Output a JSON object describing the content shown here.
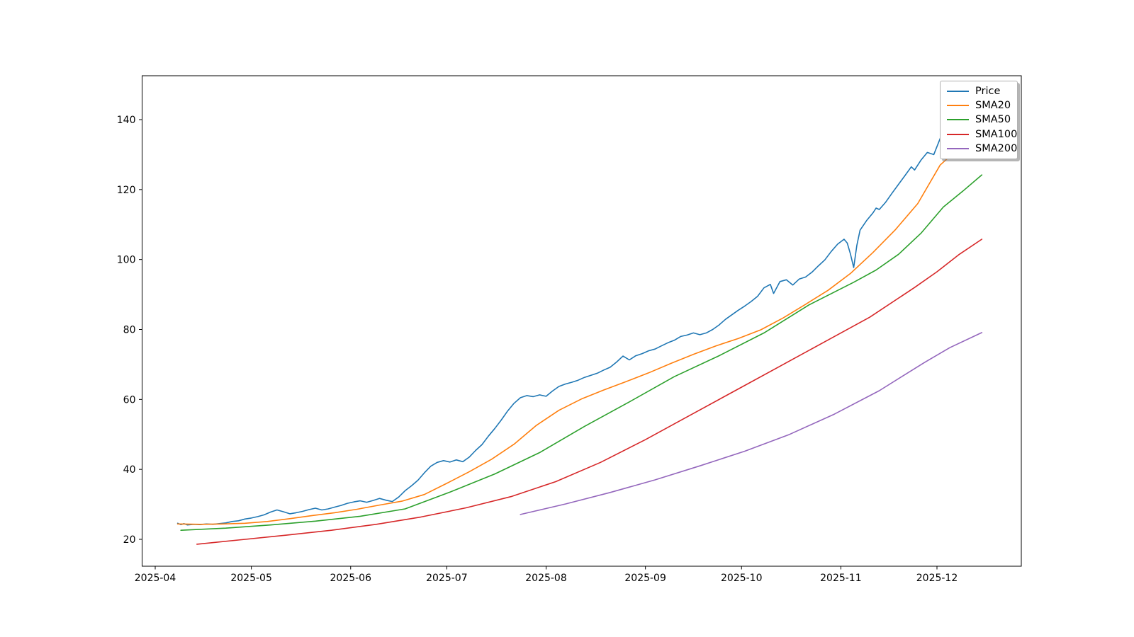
{
  "figure": {
    "background": "#ffffff",
    "description": "Line chart of daily Price with simple moving averages SMA20, SMA50, SMA100, SMA200 from 2025-04 to 2025-12"
  },
  "chart_data": {
    "type": "line",
    "title": "",
    "xlabel": "",
    "ylabel": "",
    "grid": false,
    "legend_position": "upper right",
    "legend_entries": [
      "Price",
      "SMA20",
      "SMA50",
      "SMA100",
      "SMA200"
    ],
    "x_axis": {
      "tick_labels": [
        "2025-04",
        "2025-05",
        "2025-06",
        "2025-07",
        "2025-08",
        "2025-09",
        "2025-10",
        "2025-11",
        "2025-12"
      ],
      "tick_dates": [
        "2025-04-01",
        "2025-05-01",
        "2025-06-01",
        "2025-07-01",
        "2025-08-01",
        "2025-09-01",
        "2025-10-01",
        "2025-11-01",
        "2025-12-01"
      ],
      "range_dates": [
        "2025-03-28",
        "2025-12-27"
      ]
    },
    "y_axis": {
      "ticks": [
        20,
        40,
        60,
        80,
        100,
        120,
        140
      ],
      "range": [
        12.3,
        152.6
      ]
    },
    "series": [
      {
        "name": "Price",
        "color": "#1f77b4",
        "points": [
          [
            "2025-04-08",
            24.6
          ],
          [
            "2025-04-09",
            24.2
          ],
          [
            "2025-04-10",
            24.5
          ],
          [
            "2025-04-11",
            24.1
          ],
          [
            "2025-04-13",
            24.3
          ],
          [
            "2025-04-15",
            24.2
          ],
          [
            "2025-04-17",
            24.4
          ],
          [
            "2025-04-19",
            24.3
          ],
          [
            "2025-04-21",
            24.5
          ],
          [
            "2025-04-23",
            24.7
          ],
          [
            "2025-04-25",
            25.1
          ],
          [
            "2025-04-27",
            25.3
          ],
          [
            "2025-04-29",
            25.8
          ],
          [
            "2025-05-01",
            26.1
          ],
          [
            "2025-05-03",
            26.5
          ],
          [
            "2025-05-05",
            27.0
          ],
          [
            "2025-05-07",
            27.8
          ],
          [
            "2025-05-09",
            28.4
          ],
          [
            "2025-05-11",
            27.9
          ],
          [
            "2025-05-13",
            27.3
          ],
          [
            "2025-05-15",
            27.6
          ],
          [
            "2025-05-17",
            28.0
          ],
          [
            "2025-05-19",
            28.5
          ],
          [
            "2025-05-21",
            28.9
          ],
          [
            "2025-05-23",
            28.4
          ],
          [
            "2025-05-25",
            28.7
          ],
          [
            "2025-05-27",
            29.2
          ],
          [
            "2025-05-29",
            29.7
          ],
          [
            "2025-05-31",
            30.3
          ],
          [
            "2025-06-02",
            30.7
          ],
          [
            "2025-06-04",
            31.0
          ],
          [
            "2025-06-06",
            30.6
          ],
          [
            "2025-06-08",
            31.1
          ],
          [
            "2025-06-10",
            31.7
          ],
          [
            "2025-06-12",
            31.2
          ],
          [
            "2025-06-14",
            30.8
          ],
          [
            "2025-06-16",
            32.1
          ],
          [
            "2025-06-18",
            33.9
          ],
          [
            "2025-06-20",
            35.3
          ],
          [
            "2025-06-22",
            36.9
          ],
          [
            "2025-06-24",
            39.0
          ],
          [
            "2025-06-26",
            40.9
          ],
          [
            "2025-06-28",
            42.0
          ],
          [
            "2025-06-30",
            42.5
          ],
          [
            "2025-07-02",
            42.1
          ],
          [
            "2025-07-04",
            42.7
          ],
          [
            "2025-07-06",
            42.2
          ],
          [
            "2025-07-08",
            43.5
          ],
          [
            "2025-07-10",
            45.4
          ],
          [
            "2025-07-12",
            47.1
          ],
          [
            "2025-07-14",
            49.5
          ],
          [
            "2025-07-16",
            51.7
          ],
          [
            "2025-07-18",
            54.1
          ],
          [
            "2025-07-20",
            56.7
          ],
          [
            "2025-07-22",
            58.9
          ],
          [
            "2025-07-24",
            60.5
          ],
          [
            "2025-07-26",
            61.1
          ],
          [
            "2025-07-28",
            60.8
          ],
          [
            "2025-07-30",
            61.3
          ],
          [
            "2025-08-01",
            60.9
          ],
          [
            "2025-08-03",
            62.4
          ],
          [
            "2025-08-05",
            63.7
          ],
          [
            "2025-08-07",
            64.4
          ],
          [
            "2025-08-09",
            64.9
          ],
          [
            "2025-08-11",
            65.5
          ],
          [
            "2025-08-13",
            66.3
          ],
          [
            "2025-08-15",
            66.9
          ],
          [
            "2025-08-17",
            67.5
          ],
          [
            "2025-08-19",
            68.4
          ],
          [
            "2025-08-21",
            69.2
          ],
          [
            "2025-08-23",
            70.7
          ],
          [
            "2025-08-25",
            72.4
          ],
          [
            "2025-08-27",
            71.3
          ],
          [
            "2025-08-29",
            72.5
          ],
          [
            "2025-08-31",
            73.1
          ],
          [
            "2025-09-02",
            73.9
          ],
          [
            "2025-09-04",
            74.4
          ],
          [
            "2025-09-06",
            75.3
          ],
          [
            "2025-09-08",
            76.2
          ],
          [
            "2025-09-10",
            76.9
          ],
          [
            "2025-09-12",
            78.0
          ],
          [
            "2025-09-14",
            78.4
          ],
          [
            "2025-09-16",
            79.0
          ],
          [
            "2025-09-18",
            78.5
          ],
          [
            "2025-09-20",
            79.0
          ],
          [
            "2025-09-22",
            80.0
          ],
          [
            "2025-09-24",
            81.3
          ],
          [
            "2025-09-26",
            82.9
          ],
          [
            "2025-09-28",
            84.2
          ],
          [
            "2025-09-30",
            85.5
          ],
          [
            "2025-10-02",
            86.7
          ],
          [
            "2025-10-04",
            88.0
          ],
          [
            "2025-10-06",
            89.5
          ],
          [
            "2025-10-08",
            91.9
          ],
          [
            "2025-10-10",
            92.9
          ],
          [
            "2025-10-11",
            90.3
          ],
          [
            "2025-10-13",
            93.7
          ],
          [
            "2025-10-15",
            94.2
          ],
          [
            "2025-10-17",
            92.7
          ],
          [
            "2025-10-19",
            94.4
          ],
          [
            "2025-10-21",
            95.0
          ],
          [
            "2025-10-23",
            96.4
          ],
          [
            "2025-10-25",
            98.2
          ],
          [
            "2025-10-27",
            99.9
          ],
          [
            "2025-10-29",
            102.3
          ],
          [
            "2025-10-31",
            104.4
          ],
          [
            "2025-11-02",
            105.8
          ],
          [
            "2025-11-03",
            104.7
          ],
          [
            "2025-11-04",
            101.6
          ],
          [
            "2025-11-05",
            97.7
          ],
          [
            "2025-11-06",
            104.1
          ],
          [
            "2025-11-07",
            108.4
          ],
          [
            "2025-11-09",
            111.1
          ],
          [
            "2025-11-11",
            113.3
          ],
          [
            "2025-11-12",
            114.7
          ],
          [
            "2025-11-13",
            114.3
          ],
          [
            "2025-11-15",
            116.4
          ],
          [
            "2025-11-17",
            119.0
          ],
          [
            "2025-11-19",
            121.5
          ],
          [
            "2025-11-21",
            124.0
          ],
          [
            "2025-11-23",
            126.5
          ],
          [
            "2025-11-24",
            125.6
          ],
          [
            "2025-11-26",
            128.4
          ],
          [
            "2025-11-28",
            130.6
          ],
          [
            "2025-11-30",
            130.0
          ],
          [
            "2025-12-02",
            134.6
          ],
          [
            "2025-12-03",
            137.3
          ],
          [
            "2025-12-05",
            138.2
          ],
          [
            "2025-12-07",
            139.5
          ],
          [
            "2025-12-09",
            140.8
          ],
          [
            "2025-12-11",
            142.1
          ],
          [
            "2025-12-13",
            143.4
          ],
          [
            "2025-12-15",
            144.6
          ]
        ]
      },
      {
        "name": "SMA20",
        "color": "#ff7f0e",
        "points": [
          [
            "2025-04-08",
            24.4
          ],
          [
            "2025-04-15",
            24.3
          ],
          [
            "2025-04-22",
            24.4
          ],
          [
            "2025-04-29",
            24.6
          ],
          [
            "2025-05-06",
            25.1
          ],
          [
            "2025-05-13",
            25.9
          ],
          [
            "2025-05-20",
            26.8
          ],
          [
            "2025-05-27",
            27.6
          ],
          [
            "2025-06-03",
            28.6
          ],
          [
            "2025-06-10",
            29.8
          ],
          [
            "2025-06-17",
            30.9
          ],
          [
            "2025-06-24",
            32.8
          ],
          [
            "2025-07-01",
            36.0
          ],
          [
            "2025-07-08",
            39.3
          ],
          [
            "2025-07-15",
            42.9
          ],
          [
            "2025-07-22",
            47.2
          ],
          [
            "2025-07-29",
            52.6
          ],
          [
            "2025-08-05",
            56.9
          ],
          [
            "2025-08-12",
            60.1
          ],
          [
            "2025-08-19",
            62.7
          ],
          [
            "2025-08-26",
            65.1
          ],
          [
            "2025-09-02",
            67.6
          ],
          [
            "2025-09-09",
            70.3
          ],
          [
            "2025-09-16",
            72.9
          ],
          [
            "2025-09-23",
            75.3
          ],
          [
            "2025-09-30",
            77.4
          ],
          [
            "2025-10-07",
            79.9
          ],
          [
            "2025-10-14",
            83.3
          ],
          [
            "2025-10-21",
            87.2
          ],
          [
            "2025-10-28",
            91.2
          ],
          [
            "2025-11-04",
            96.0
          ],
          [
            "2025-11-11",
            102.0
          ],
          [
            "2025-11-18",
            108.5
          ],
          [
            "2025-11-25",
            116.0
          ],
          [
            "2025-12-02",
            127.0
          ],
          [
            "2025-12-09",
            132.8
          ],
          [
            "2025-12-15",
            137.5
          ]
        ]
      },
      {
        "name": "SMA50",
        "color": "#2ca02c",
        "points": [
          [
            "2025-04-09",
            22.6
          ],
          [
            "2025-04-23",
            23.2
          ],
          [
            "2025-05-07",
            24.1
          ],
          [
            "2025-05-21",
            25.2
          ],
          [
            "2025-06-04",
            26.6
          ],
          [
            "2025-06-18",
            28.7
          ],
          [
            "2025-07-02",
            33.5
          ],
          [
            "2025-07-16",
            38.7
          ],
          [
            "2025-07-30",
            44.8
          ],
          [
            "2025-08-13",
            52.3
          ],
          [
            "2025-08-27",
            59.3
          ],
          [
            "2025-09-10",
            66.5
          ],
          [
            "2025-09-24",
            72.5
          ],
          [
            "2025-10-08",
            79.0
          ],
          [
            "2025-10-22",
            87.0
          ],
          [
            "2025-11-05",
            93.5
          ],
          [
            "2025-11-12",
            97.0
          ],
          [
            "2025-11-19",
            101.5
          ],
          [
            "2025-11-26",
            107.5
          ],
          [
            "2025-12-03",
            115.0
          ],
          [
            "2025-12-09",
            119.5
          ],
          [
            "2025-12-15",
            124.2
          ]
        ]
      },
      {
        "name": "SMA100",
        "color": "#d62728",
        "points": [
          [
            "2025-04-14",
            18.6
          ],
          [
            "2025-04-28",
            19.9
          ],
          [
            "2025-05-12",
            21.2
          ],
          [
            "2025-05-26",
            22.6
          ],
          [
            "2025-06-09",
            24.3
          ],
          [
            "2025-06-23",
            26.4
          ],
          [
            "2025-07-07",
            29.0
          ],
          [
            "2025-07-21",
            32.2
          ],
          [
            "2025-08-04",
            36.5
          ],
          [
            "2025-08-18",
            42.0
          ],
          [
            "2025-09-01",
            48.5
          ],
          [
            "2025-09-15",
            55.5
          ],
          [
            "2025-09-29",
            62.5
          ],
          [
            "2025-10-13",
            69.5
          ],
          [
            "2025-10-27",
            76.5
          ],
          [
            "2025-11-10",
            83.5
          ],
          [
            "2025-11-24",
            92.0
          ],
          [
            "2025-12-01",
            96.5
          ],
          [
            "2025-12-08",
            101.5
          ],
          [
            "2025-12-15",
            105.8
          ]
        ]
      },
      {
        "name": "SMA200",
        "color": "#9467bd",
        "points": [
          [
            "2025-07-24",
            27.1
          ],
          [
            "2025-08-07",
            30.1
          ],
          [
            "2025-08-21",
            33.4
          ],
          [
            "2025-09-04",
            37.0
          ],
          [
            "2025-09-18",
            41.0
          ],
          [
            "2025-10-02",
            45.2
          ],
          [
            "2025-10-16",
            50.0
          ],
          [
            "2025-10-30",
            55.8
          ],
          [
            "2025-11-13",
            62.5
          ],
          [
            "2025-11-27",
            70.5
          ],
          [
            "2025-12-05",
            74.8
          ],
          [
            "2025-12-15",
            79.1
          ]
        ]
      }
    ]
  }
}
